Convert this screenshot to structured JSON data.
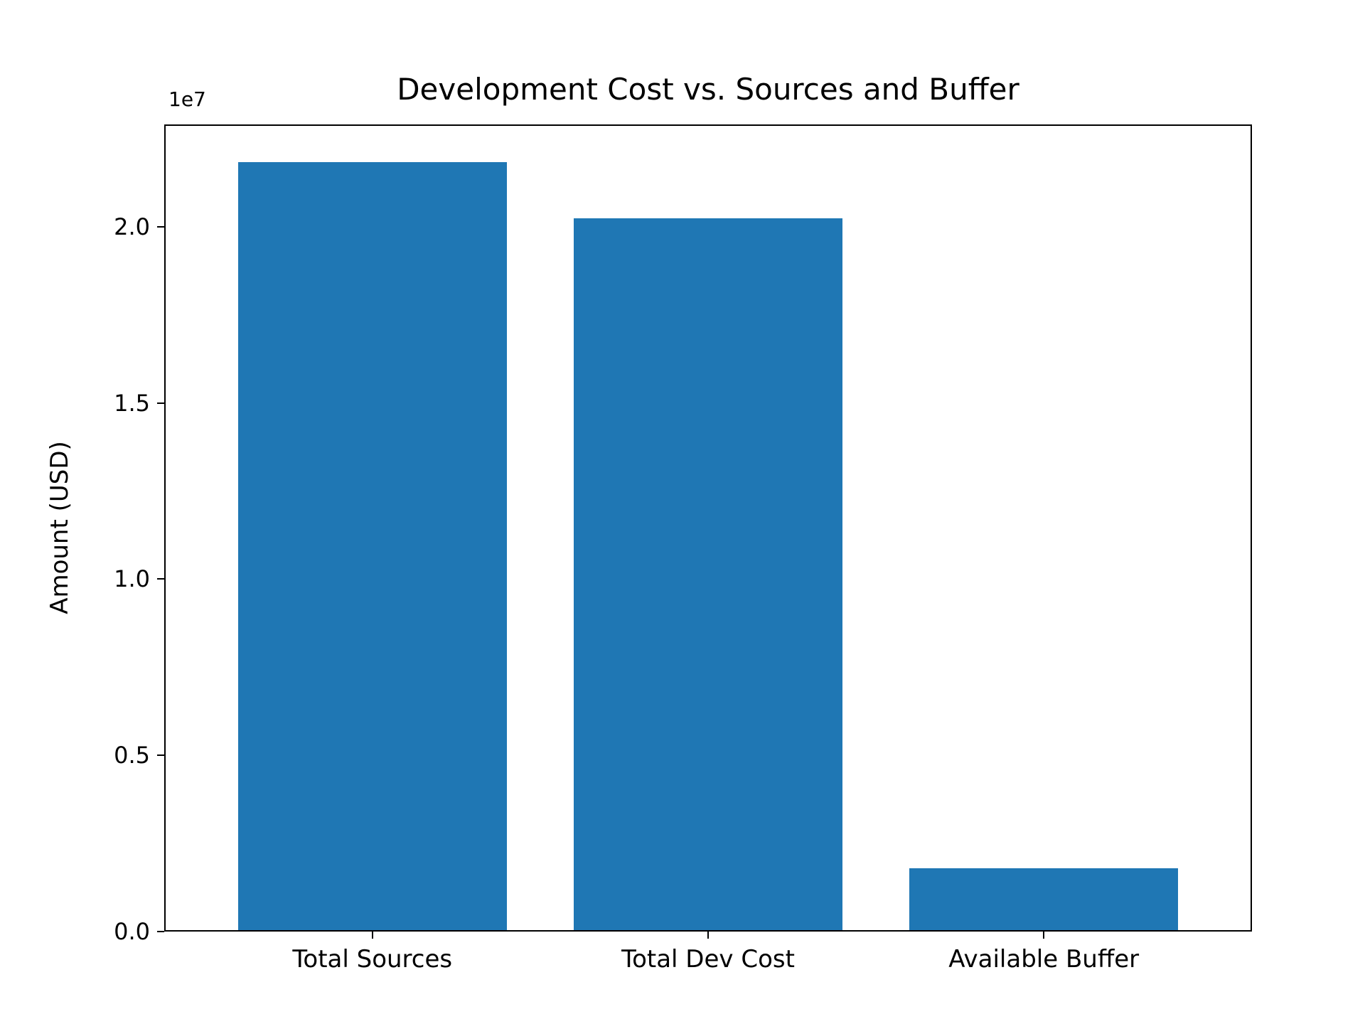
{
  "chart_data": {
    "type": "bar",
    "title": "Development Cost vs. Sources and Buffer",
    "xlabel": "",
    "ylabel": "Amount (USD)",
    "y_offset_label": "1e7",
    "categories": [
      "Total Sources",
      "Total Dev Cost",
      "Available Buffer"
    ],
    "values": [
      21800000,
      20200000,
      1750000
    ],
    "bar_color": "#1f77b4",
    "ylim": [
      0,
      22900000
    ],
    "yticks": [
      0,
      5000000,
      10000000,
      15000000,
      20000000
    ],
    "ytick_labels": [
      "0.0",
      "0.5",
      "1.0",
      "1.5",
      "2.0"
    ],
    "xlim": [
      -0.62,
      2.62
    ],
    "bar_width": 0.8,
    "grid": false,
    "legend_position": "none"
  }
}
